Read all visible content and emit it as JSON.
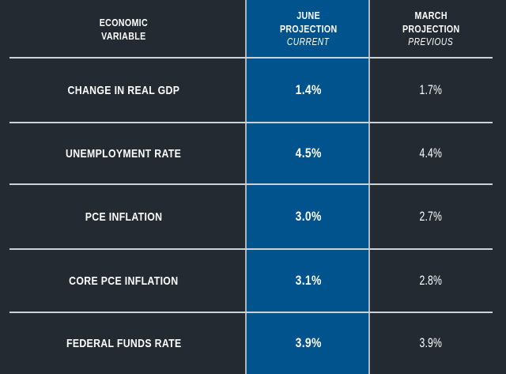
{
  "header": {
    "col_variable": {
      "line1": "ECONOMIC",
      "line2": "VARIABLE"
    },
    "col_june": {
      "line1": "JUNE",
      "line2": "PROJECTION",
      "subtitle": "CURRENT"
    },
    "col_march": {
      "line1": "MARCH",
      "line2": "PROJECTION",
      "subtitle": "PREVIOUS"
    }
  },
  "chart_data": {
    "type": "table",
    "columns": [
      "ECONOMIC VARIABLE",
      "JUNE PROJECTION (CURRENT)",
      "MARCH PROJECTION (PREVIOUS)"
    ],
    "rows": [
      {
        "variable": "CHANGE IN REAL GDP",
        "june": "1.4%",
        "march": "1.7%"
      },
      {
        "variable": "UNEMPLOYMENT RATE",
        "june": "4.5%",
        "march": "4.4%"
      },
      {
        "variable": "PCE INFLATION",
        "june": "3.0%",
        "march": "2.7%"
      },
      {
        "variable": "CORE PCE INFLATION",
        "june": "3.1%",
        "march": "2.8%"
      },
      {
        "variable": "FEDERAL FUNDS RATE",
        "june": "3.9%",
        "march": "3.9%"
      }
    ],
    "layout": {
      "highlighted_column": "JUNE PROJECTION",
      "legend_position": "none",
      "grid": "horizontal-separators"
    }
  },
  "colors": {
    "background": "#232a32",
    "highlight_blue": "#00538d",
    "separator_line": "#ccd1d6",
    "text": "#ffffff"
  }
}
